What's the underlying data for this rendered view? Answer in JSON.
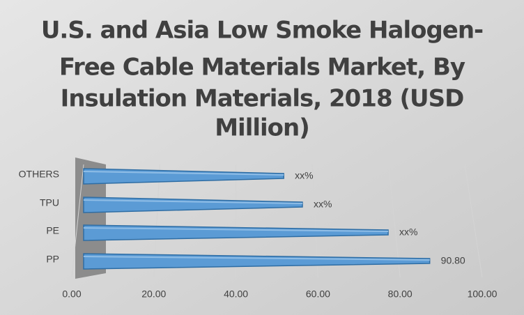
{
  "chart_data": {
    "type": "bar",
    "title": [
      "U.S. and Asia Low Smoke Halogen-",
      "Free Cable Materials Market, By",
      "Insulation Materials, 2018 (USD",
      "Million)"
    ],
    "categories": [
      "OTHERS",
      "TPU",
      "PE",
      "PP"
    ],
    "values": [
      52.5,
      57.4,
      79.9,
      90.8
    ],
    "value_labels": [
      "xx%",
      "xx%",
      "xx%",
      "90.80"
    ],
    "color": "#5b9bd5",
    "xlim": [
      0,
      100
    ],
    "xticks": [
      {
        "value": 0,
        "label": "0.00"
      },
      {
        "value": 20,
        "label": "20.00"
      },
      {
        "value": 40,
        "label": "40.00"
      },
      {
        "value": 60,
        "label": "60.00"
      },
      {
        "value": 80,
        "label": "80.00"
      },
      {
        "value": 100,
        "label": "100.00"
      }
    ],
    "grid": true
  }
}
